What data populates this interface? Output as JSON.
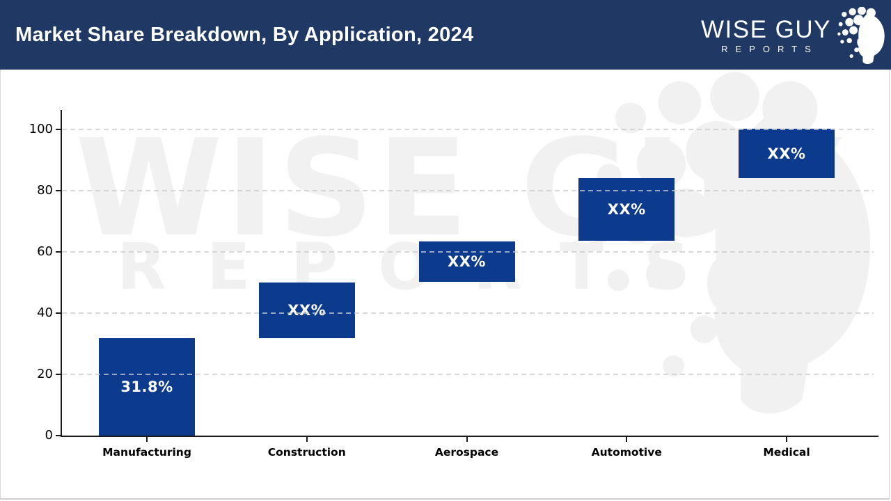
{
  "header": {
    "title": "Market Share Breakdown, By Application, 2024"
  },
  "logo": {
    "line1": "WISE GUY",
    "line2": "REPORTS"
  },
  "watermark": {
    "line1": "WISE GUY",
    "line2": "REPORTS"
  },
  "chart_data": {
    "type": "bar",
    "subtype": "waterfall-floating-bars",
    "title": "Market Share Breakdown, By Application, 2024",
    "categories": [
      "Manufacturing",
      "Construction",
      "Aerospace",
      "Automotive",
      "Medical"
    ],
    "segments": [
      {
        "category": "Manufacturing",
        "from": 0,
        "to": 31.8,
        "label": "31.8%"
      },
      {
        "category": "Construction",
        "from": 31.8,
        "to": 50.0,
        "label": "XX%"
      },
      {
        "category": "Aerospace",
        "from": 50.2,
        "to": 63.4,
        "label": "XX%"
      },
      {
        "category": "Automotive",
        "from": 63.6,
        "to": 84.1,
        "label": "XX%"
      },
      {
        "category": "Medical",
        "from": 84.1,
        "to": 100.2,
        "label": "XX%"
      }
    ],
    "yticks": [
      0,
      20,
      40,
      60,
      80,
      100
    ],
    "ylim": [
      0,
      106
    ],
    "xlabel": "",
    "ylabel": "",
    "grid": "horizontal-dashed",
    "legend": "none"
  },
  "colors": {
    "header_bg": "#1f3864",
    "bar": "#0c3b8d",
    "axis": "#1a1a1a",
    "grid": "#cbcbcb",
    "watermark": "#f1f1f1",
    "value_label": "#ffffff"
  }
}
